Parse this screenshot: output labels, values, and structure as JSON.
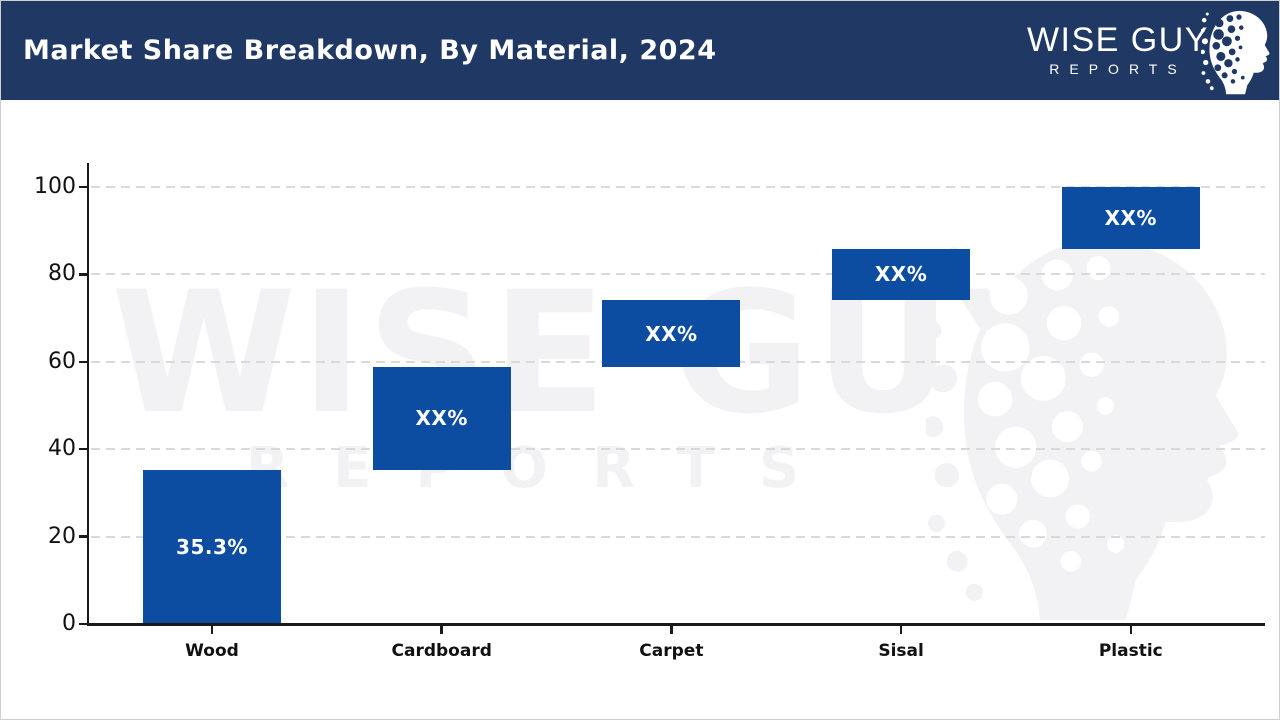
{
  "header": {
    "title": "Market Share Breakdown, By Material, 2024",
    "logo": {
      "line1": "WISE GUY",
      "line2": "REPORTS",
      "head_icon": "wiseguy-head-icon"
    }
  },
  "watermark": {
    "line1": "WISE GUY",
    "line2": "REPORTS",
    "head_icon": "watermark-head-icon"
  },
  "colors": {
    "header_bg": "#1F3864",
    "title_text": "#FFFFFF",
    "bar_fill": "#0D4DA1",
    "bar_label": "#FFFFFF",
    "axis": "#1A1A1A",
    "tick_label": "#111111",
    "grid": "#D9D9D9",
    "watermark": "#F2F2F4"
  },
  "chart_data": {
    "type": "bar",
    "subtype": "waterfall",
    "title": "Market Share Breakdown, By Material, 2024",
    "xlabel": "",
    "ylabel": "",
    "ylim": [
      0,
      100
    ],
    "yticks": [
      0,
      20,
      40,
      60,
      80,
      100
    ],
    "grid": "horizontal-dashed",
    "legend": "none",
    "categories": [
      "Wood",
      "Cardboard",
      "Carpet",
      "Sisal",
      "Plastic"
    ],
    "segments": [
      {
        "category": "Wood",
        "start": 0,
        "end": 35.3,
        "label": "35.3%"
      },
      {
        "category": "Cardboard",
        "start": 35.3,
        "end": 58.8,
        "label": "XX%"
      },
      {
        "category": "Carpet",
        "start": 58.8,
        "end": 74.1,
        "label": "XX%"
      },
      {
        "category": "Sisal",
        "start": 74.1,
        "end": 85.9,
        "label": "XX%"
      },
      {
        "category": "Plastic",
        "start": 85.9,
        "end": 100,
        "label": "XX%"
      }
    ]
  }
}
